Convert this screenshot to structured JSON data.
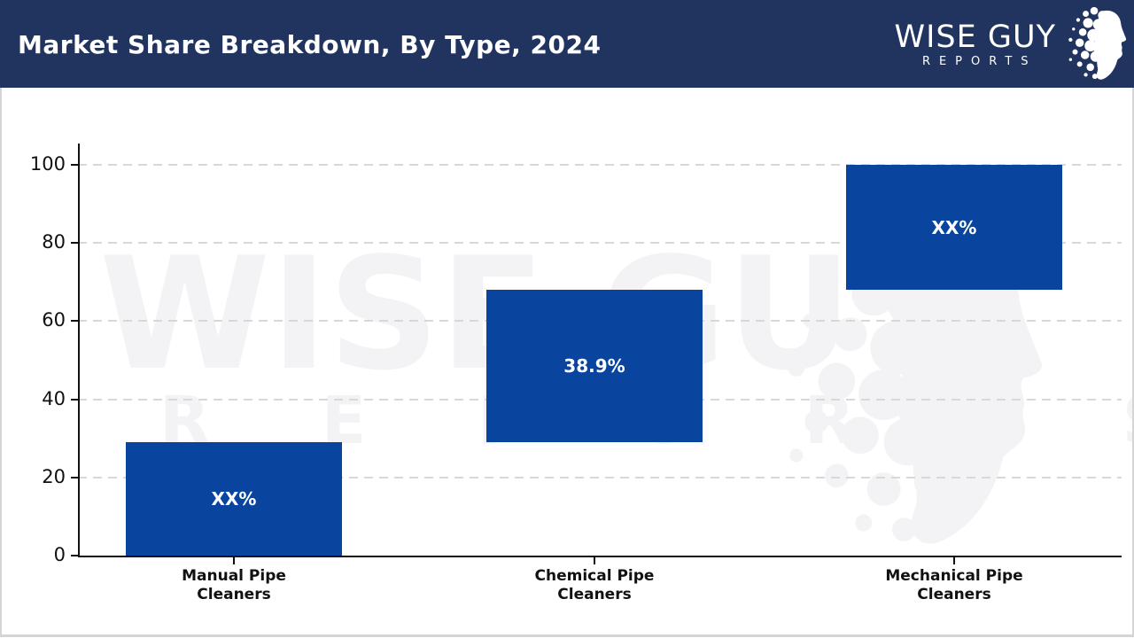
{
  "header": {
    "title": "Market Share Breakdown, By Type, 2024",
    "logo": {
      "line1": "WISE GUY",
      "line2": "REPORTS"
    }
  },
  "watermark": {
    "line1": "WISE GUY",
    "line2": "R E P O R T S"
  },
  "colors": {
    "header_bg": "#21345F",
    "bar": "#09459E",
    "grid": "#D8D8D8",
    "axis": "#111111",
    "watermark": "#F3F3F6",
    "frame_border": "#D5D5D5",
    "bar_label_text": "#FFFFFF"
  },
  "chart_data": {
    "type": "bar",
    "variant": "floating-waterfall",
    "title": "Market Share Breakdown, By Type, 2024",
    "xlabel": "",
    "ylabel": "",
    "categories": [
      "Manual Pipe\nCleaners",
      "Chemical Pipe\nCleaners",
      "Mechanical Pipe\nCleaners"
    ],
    "segments": [
      {
        "category": "Manual Pipe Cleaners",
        "base": 0,
        "top": 29.1,
        "label": "XX%"
      },
      {
        "category": "Chemical Pipe Cleaners",
        "base": 29.1,
        "top": 68.0,
        "label": "38.9%"
      },
      {
        "category": "Mechanical Pipe Cleaners",
        "base": 68.0,
        "top": 100,
        "label": "XX%"
      }
    ],
    "yticks": [
      0,
      20,
      40,
      60,
      80,
      100
    ],
    "ylim": [
      0,
      106
    ],
    "grid": "horizontal-dashed",
    "legend": "none"
  }
}
